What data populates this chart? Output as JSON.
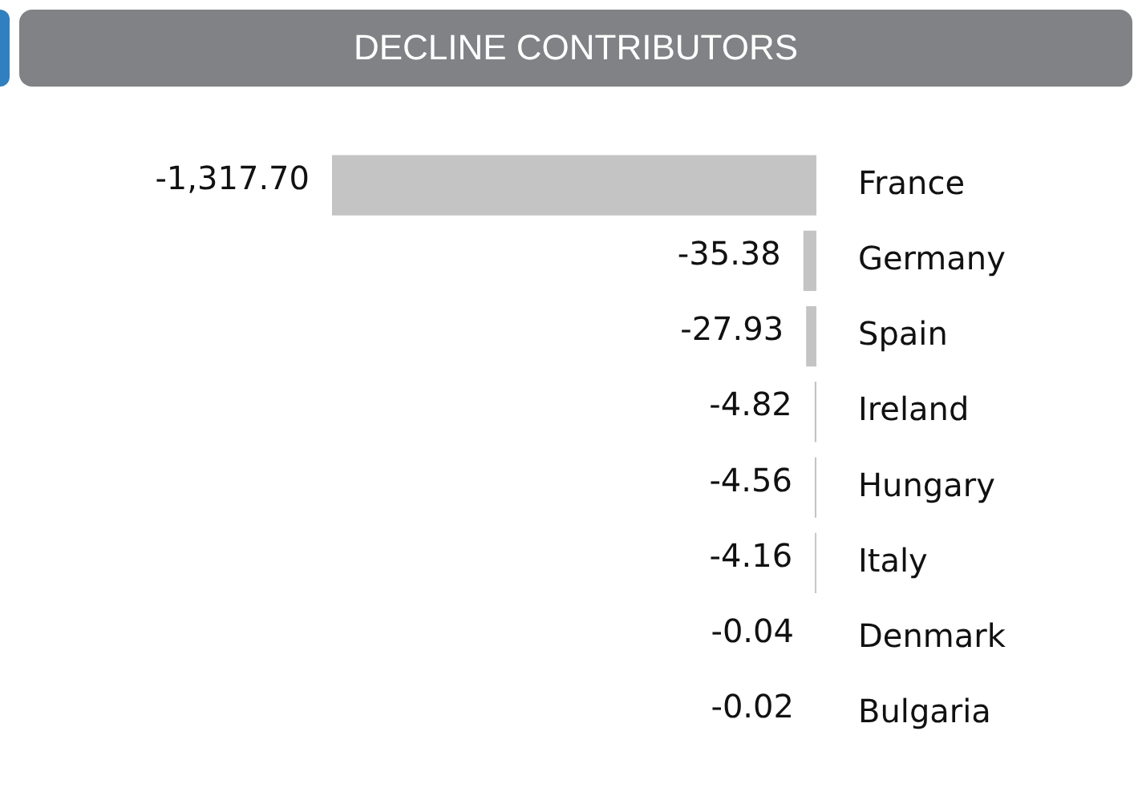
{
  "chart_data": {
    "type": "bar",
    "orientation": "horizontal",
    "title": "DECLINE CONTRIBUTORS",
    "categories": [
      "France",
      "Germany",
      "Spain",
      "Ireland",
      "Hungary",
      "Italy",
      "Denmark",
      "Bulgaria"
    ],
    "values": [
      -1317.7,
      -35.38,
      -27.93,
      -4.82,
      -4.56,
      -4.16,
      -0.04,
      -0.02
    ],
    "value_labels": [
      "-1,317.70",
      "-35.38",
      "-27.93",
      "-4.82",
      "-4.56",
      "-4.16",
      "-0.04",
      "-0.02"
    ],
    "color": "#c4c4c4"
  }
}
